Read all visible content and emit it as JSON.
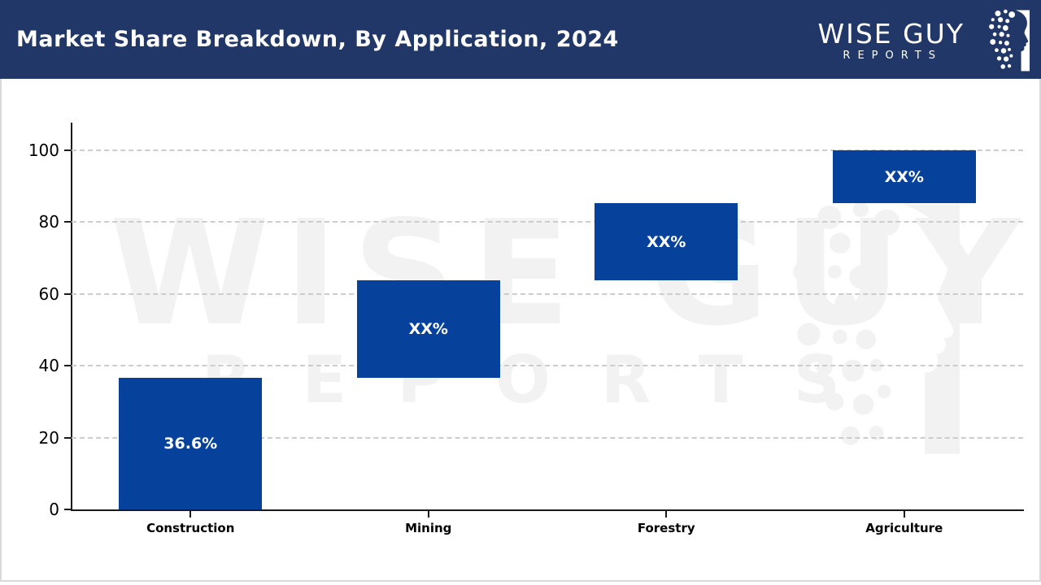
{
  "header": {
    "title": "Market Share Breakdown, By Application, 2024",
    "logo": {
      "line1": "WISE GUY",
      "line2": "REPORTS"
    }
  },
  "watermark": {
    "line1": "WISE GUY",
    "line2": "REPORTS"
  },
  "chart_data": {
    "type": "bar",
    "subtype": "waterfall",
    "title": "Market Share Breakdown, By Application, 2024",
    "categories": [
      "Construction",
      "Mining",
      "Forestry",
      "Agriculture"
    ],
    "segments": [
      {
        "category": "Construction",
        "start": 0,
        "end": 36.6,
        "label": "36.6%"
      },
      {
        "category": "Mining",
        "start": 36.6,
        "end": 63.8,
        "label": "XX%"
      },
      {
        "category": "Forestry",
        "start": 63.8,
        "end": 85.2,
        "label": "XX%"
      },
      {
        "category": "Agriculture",
        "start": 85.2,
        "end": 100,
        "label": "XX%"
      }
    ],
    "yticks": [
      0,
      20,
      40,
      60,
      80,
      100
    ],
    "ylim": [
      0,
      100
    ],
    "xlabel": "",
    "ylabel": "",
    "grid": "dashed-horizontal",
    "legend": "none"
  },
  "colors": {
    "header_bg": "#213768",
    "bar": "#06419c",
    "bar_label": "#ffffff",
    "grid": "#cccccc",
    "axis": "#1a1a1a",
    "watermark": "#f2f2f2"
  }
}
